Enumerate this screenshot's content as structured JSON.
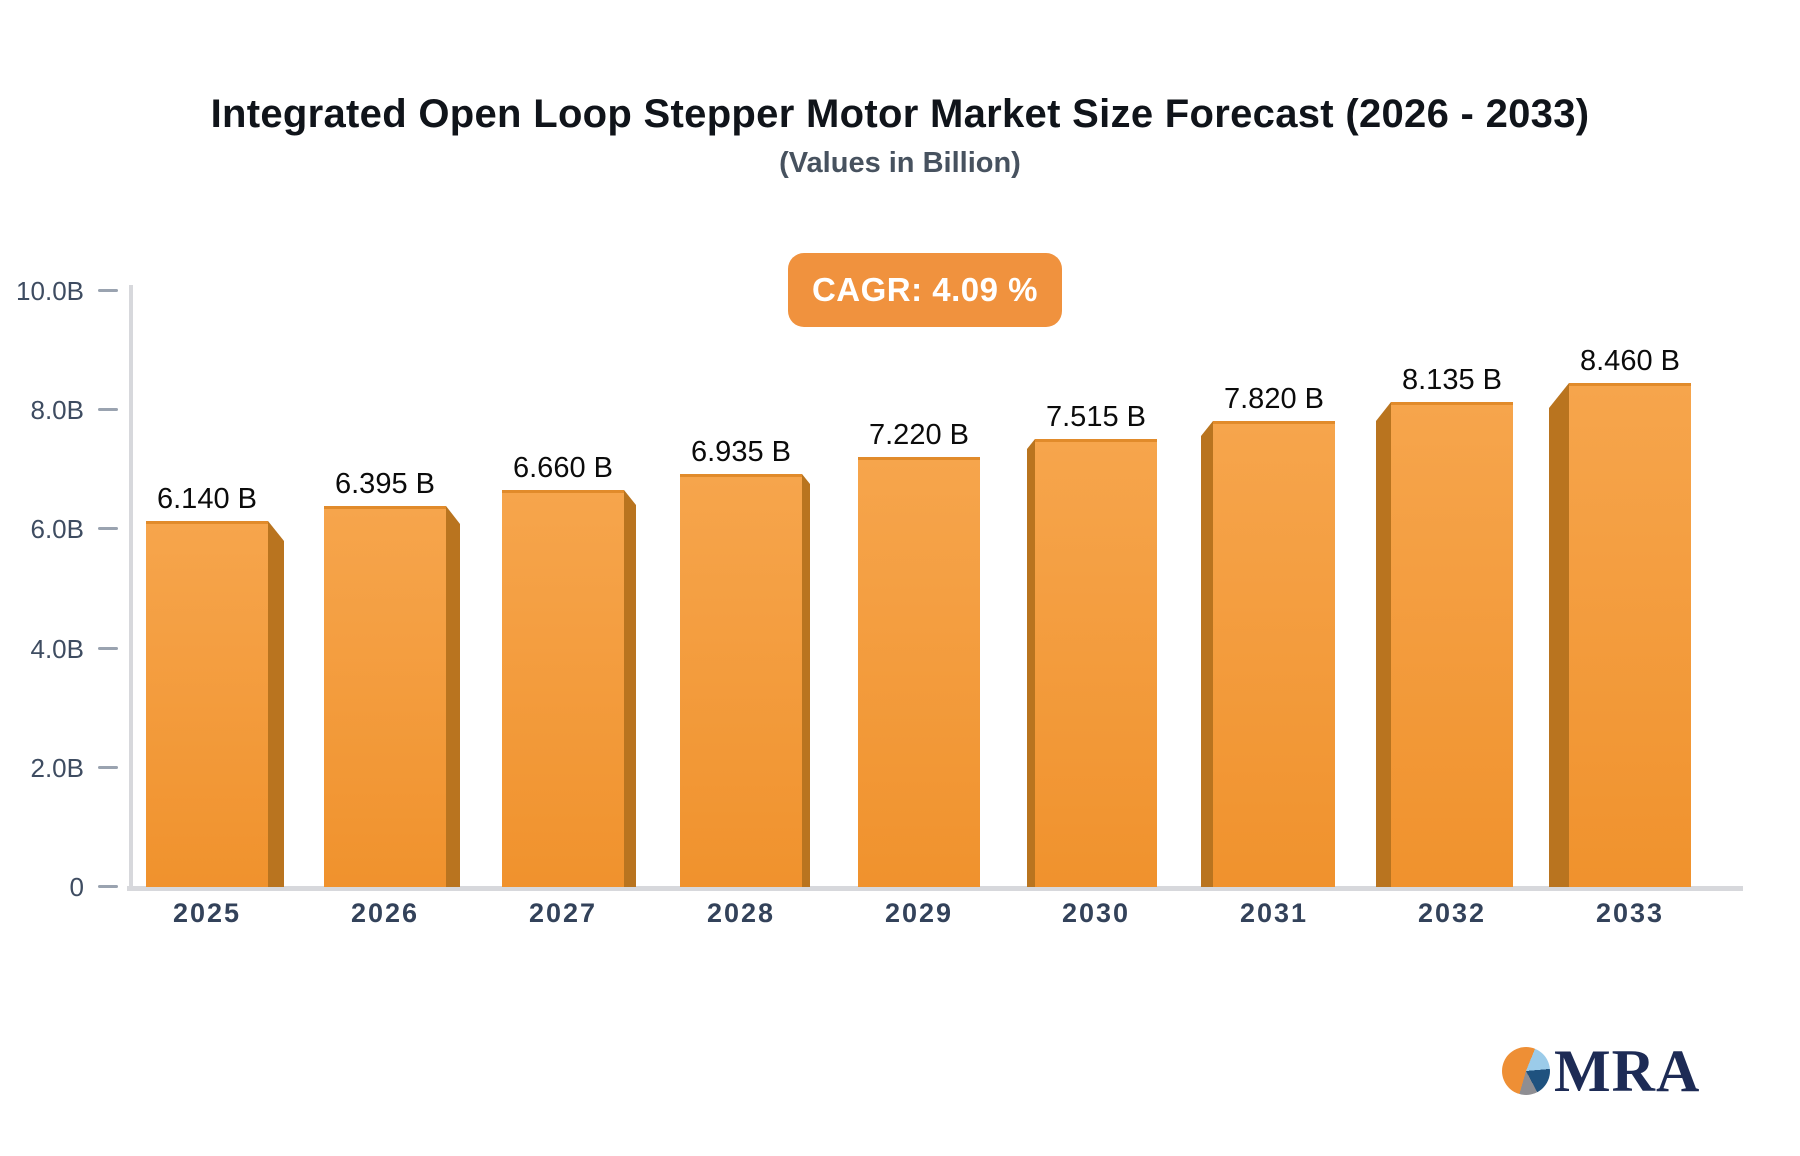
{
  "header": {
    "title": "Integrated Open Loop Stepper Motor Market Size Forecast (2026 - 2033)",
    "subtitle": "(Values in Billion)",
    "cagr_badge": "CAGR: 4.09 %"
  },
  "chart_data": {
    "type": "bar",
    "title": "Integrated Open Loop Stepper Motor Market Size Forecast (2026 - 2033)",
    "subtitle": "(Values in Billion)",
    "cagr": "4.09 %",
    "unit": "Billion",
    "categories": [
      "2025",
      "2026",
      "2027",
      "2028",
      "2029",
      "2030",
      "2031",
      "2032",
      "2033"
    ],
    "values": [
      6.14,
      6.395,
      6.66,
      6.935,
      7.22,
      7.515,
      7.82,
      8.135,
      8.46
    ],
    "value_labels": [
      "6.140 B",
      "6.395 B",
      "6.660 B",
      "6.935 B",
      "7.220 B",
      "7.515 B",
      "7.820 B",
      "8.135 B",
      "8.460 B"
    ],
    "y_ticks": [
      {
        "value": 0,
        "label": "0"
      },
      {
        "value": 2,
        "label": "2.0B"
      },
      {
        "value": 4,
        "label": "4.0B"
      },
      {
        "value": 6,
        "label": "6.0B"
      },
      {
        "value": 8,
        "label": "8.0B"
      },
      {
        "value": 10,
        "label": "10.0B"
      }
    ],
    "ylim": [
      0,
      10
    ],
    "grid": false,
    "legend": false,
    "bar_style": "3d-perspective",
    "colors": {
      "bar_face": "#F49A38",
      "bar_side": "#B9741F",
      "axis": "#D7D8DC",
      "badge": "#F0923E",
      "value_text": "#0B0B0B",
      "axis_text": "#3E4C61"
    }
  },
  "logo": {
    "text": "MRA",
    "colors": {
      "text": "#1D2B55",
      "pie_orange": "#EE8F35",
      "pie_light_blue": "#9BCBE9",
      "pie_dark_blue": "#1F527F",
      "pie_gray": "#8E8E93"
    }
  }
}
